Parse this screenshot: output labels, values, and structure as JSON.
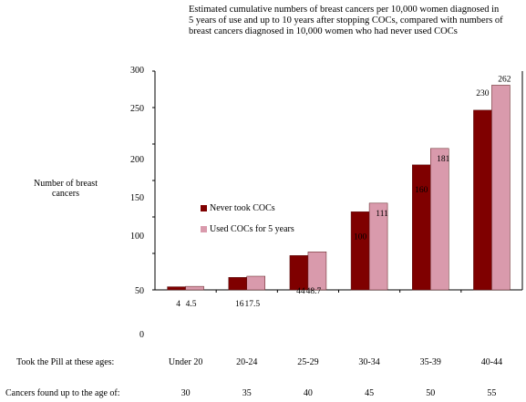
{
  "chart_data": {
    "type": "bar",
    "title": "Estimated cumulative numbers of breast cancers per 10,000 women diagnosed in 5 years of use and up to 10 years after stopping COCs, compared with numbers of breast cancers diagnosed in 10,000 women who had never used COCs",
    "ylabel": "Number of breast cancers",
    "yticks": [
      "0",
      "50",
      "100",
      "150",
      "200",
      "250",
      "300"
    ],
    "categories": [
      "Under 20",
      "20-24",
      "25-29",
      "30-34",
      "35-39",
      "40-44"
    ],
    "series": [
      {
        "name": "Never took COCs",
        "color": "#7f0000",
        "values": [
          4,
          16,
          44,
          100,
          160,
          230
        ],
        "labels": [
          "4",
          "16",
          "44",
          "100",
          "160",
          "230"
        ]
      },
      {
        "name": "Used COCs for 5 years",
        "color": "#d99aac",
        "values": [
          4.5,
          17.5,
          48.7,
          111,
          181,
          262
        ],
        "labels": [
          "4.5",
          "17.5",
          "48.7",
          "111",
          "181",
          "262"
        ]
      }
    ],
    "row1_label": "Took the Pill at these ages:",
    "row2_label": "Cancers found up to the age of:",
    "row2_values": [
      "30",
      "35",
      "40",
      "45",
      "50",
      "55"
    ],
    "legend_position": "middle-left"
  }
}
